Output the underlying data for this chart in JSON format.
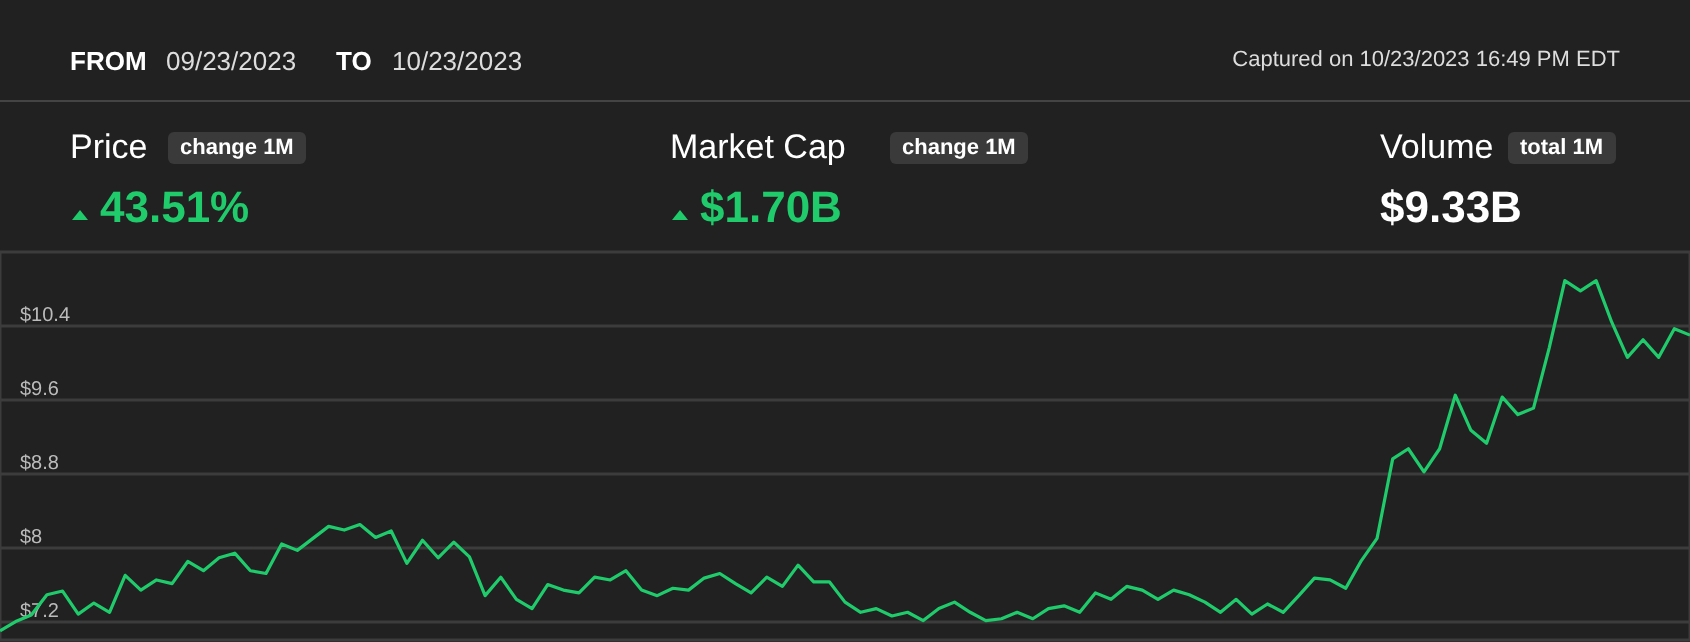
{
  "chart_data": {
    "type": "line",
    "annotations": [
      "FROM",
      "09/23/2023",
      "TO",
      "10/23/2023",
      "Captured on 10/23/2023 16:49 PM EDT",
      "Price",
      "change 1M",
      "43.51%",
      "Market Cap",
      "change 1M",
      "$1.70B",
      "Volume",
      "total 1M",
      "$9.33B"
    ],
    "categories": [
      null,
      null,
      null,
      null,
      null,
      null,
      null,
      null,
      null,
      null,
      null,
      null,
      null,
      null,
      null,
      null,
      null,
      null,
      null,
      null,
      null,
      null,
      null,
      null,
      null,
      null,
      null,
      null,
      null,
      null,
      null,
      null,
      null,
      null,
      null,
      null,
      null,
      null,
      null,
      null,
      null,
      null,
      null,
      null,
      null,
      null,
      null,
      null,
      null,
      null,
      null,
      null,
      null,
      null,
      null,
      null,
      null,
      null,
      null,
      null,
      null,
      null,
      null,
      null,
      null,
      null,
      null,
      null,
      null,
      null,
      null,
      null,
      null,
      null,
      null,
      null,
      null,
      null,
      null,
      null,
      null,
      null,
      null,
      null,
      null,
      null,
      null,
      null,
      null,
      null,
      null,
      null,
      null,
      null,
      null,
      null,
      null,
      null,
      null,
      null,
      null,
      null,
      null,
      null,
      null,
      null,
      null,
      null,
      null
    ],
    "series": [
      {
        "color": "#1fcb6b",
        "values": [
          7.1,
          7.2,
          7.27,
          7.49,
          7.53,
          7.28,
          7.4,
          7.3,
          7.7,
          7.54,
          7.65,
          7.61,
          7.85,
          7.75,
          7.89,
          7.94,
          7.75,
          7.72,
          8.04,
          7.97,
          8.1,
          8.23,
          8.19,
          8.25,
          8.11,
          8.18,
          7.83,
          8.08,
          7.89,
          8.06,
          7.9,
          7.48,
          7.68,
          7.44,
          7.34,
          7.6,
          7.54,
          7.51,
          7.68,
          7.65,
          7.75,
          7.54,
          7.48,
          7.56,
          7.54,
          7.67,
          7.72,
          7.61,
          7.51,
          7.68,
          7.58,
          7.81,
          7.63,
          7.63,
          7.41,
          7.3,
          7.34,
          7.26,
          7.3,
          7.21,
          7.34,
          7.41,
          7.3,
          7.21,
          7.23,
          7.3,
          7.23,
          7.34,
          7.37,
          7.3,
          7.51,
          7.44,
          7.58,
          7.54,
          7.44,
          7.54,
          7.49,
          7.41,
          7.3,
          7.44,
          7.28,
          7.39,
          7.3,
          7.48,
          7.67,
          7.65,
          7.56,
          7.86,
          8.1,
          8.96,
          9.07,
          8.82,
          9.07,
          9.65,
          9.27,
          9.13,
          9.63,
          9.44,
          9.51,
          10.16,
          10.89,
          10.78,
          10.89,
          10.44,
          10.06,
          10.25,
          10.06,
          10.37,
          10.3
        ]
      }
    ],
    "ylim": [
      7.0,
      11.2
    ],
    "yticks": [
      {
        "value": 7.2,
        "label": "$7.2"
      },
      {
        "value": 8,
        "label": "$8"
      },
      {
        "value": 8.8,
        "label": "$8.8"
      },
      {
        "value": 9.6,
        "label": "$9.6"
      },
      {
        "value": 10.4,
        "label": "$10.4"
      }
    ],
    "grid": "y",
    "tick_labels": "y"
  }
}
